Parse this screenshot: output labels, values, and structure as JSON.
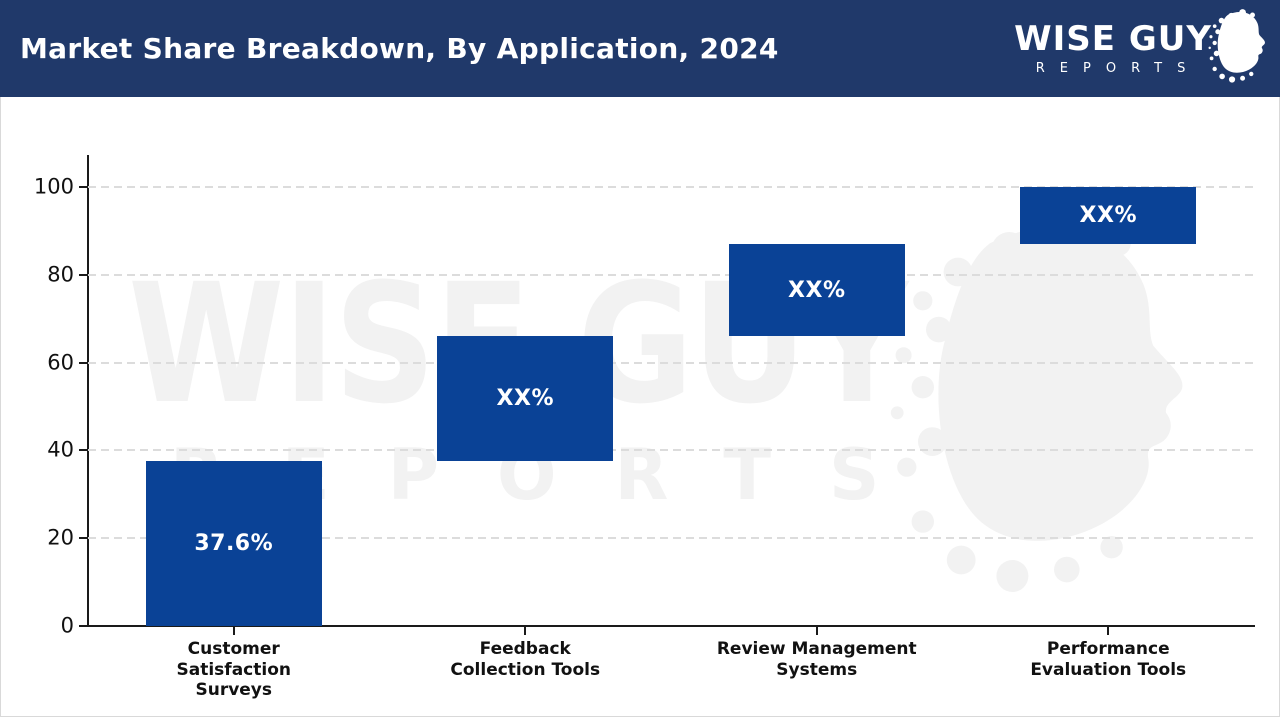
{
  "header": {
    "title": "Market Share Breakdown, By Application, 2024",
    "logo": {
      "brand": "WISE GUY",
      "sub": "REPORTS"
    }
  },
  "watermark": {
    "brand": "WISE GUY",
    "sub": "REPORTS"
  },
  "colors": {
    "header_bg": "#20396a",
    "bar": "#0a4296",
    "grid": "#dcdcdc",
    "axis": "#1a1a1a",
    "watermark": "#f2f2f2",
    "bar_label": "#ffffff"
  },
  "chart_data": {
    "type": "bar",
    "subtype": "waterfall",
    "title": "Market Share Breakdown, By Application, 2024",
    "categories": [
      "Customer Satisfaction Surveys",
      "Feedback Collection Tools",
      "Review Management Systems",
      "Performance Evaluation Tools"
    ],
    "tick_label_lines": [
      [
        "Customer",
        "Satisfaction",
        "Surveys"
      ],
      [
        "Feedback",
        "Collection Tools"
      ],
      [
        "Review Management",
        "Systems"
      ],
      [
        "Performance",
        "Evaluation Tools"
      ]
    ],
    "series": [
      {
        "name": "Market share (%)",
        "segments": [
          {
            "start": 0,
            "end": 37.6,
            "label": "37.6%"
          },
          {
            "start": 37.6,
            "end": 66,
            "label": "XX%"
          },
          {
            "start": 66,
            "end": 87,
            "label": "XX%"
          },
          {
            "start": 87,
            "end": 100,
            "label": "XX%"
          }
        ]
      }
    ],
    "values": [
      37.6,
      28.4,
      21,
      13
    ],
    "yticks": [
      0,
      20,
      40,
      60,
      80,
      100
    ],
    "ylim": [
      0,
      107
    ],
    "xlabel": "",
    "ylabel": "",
    "grid": "horizontal-dashed",
    "legend": "none"
  }
}
